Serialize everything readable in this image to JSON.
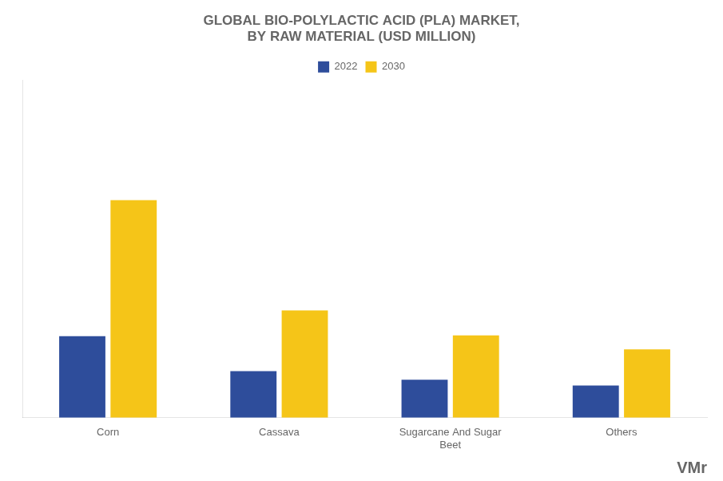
{
  "chart_data": {
    "type": "bar",
    "title": "GLOBAL BIO-POLYLACTIC ACID (PLA) MARKET,\nBY RAW MATERIAL (USD MILLION)",
    "categories": [
      "Corn",
      "Cassava",
      "Sugarcane And Sugar\nBeet",
      "Others"
    ],
    "series": [
      {
        "name": "2022",
        "color": "#2e4d9b",
        "values": [
          1050,
          600,
          490,
          415
        ]
      },
      {
        "name": "2030",
        "color": "#f5c518",
        "values": [
          2800,
          1380,
          1060,
          880
        ]
      }
    ],
    "ylim": [
      0,
      4340
    ],
    "yticks": [],
    "tick_labels": "x",
    "grid": false,
    "legend": "top",
    "annotations": [
      "VMr"
    ]
  }
}
